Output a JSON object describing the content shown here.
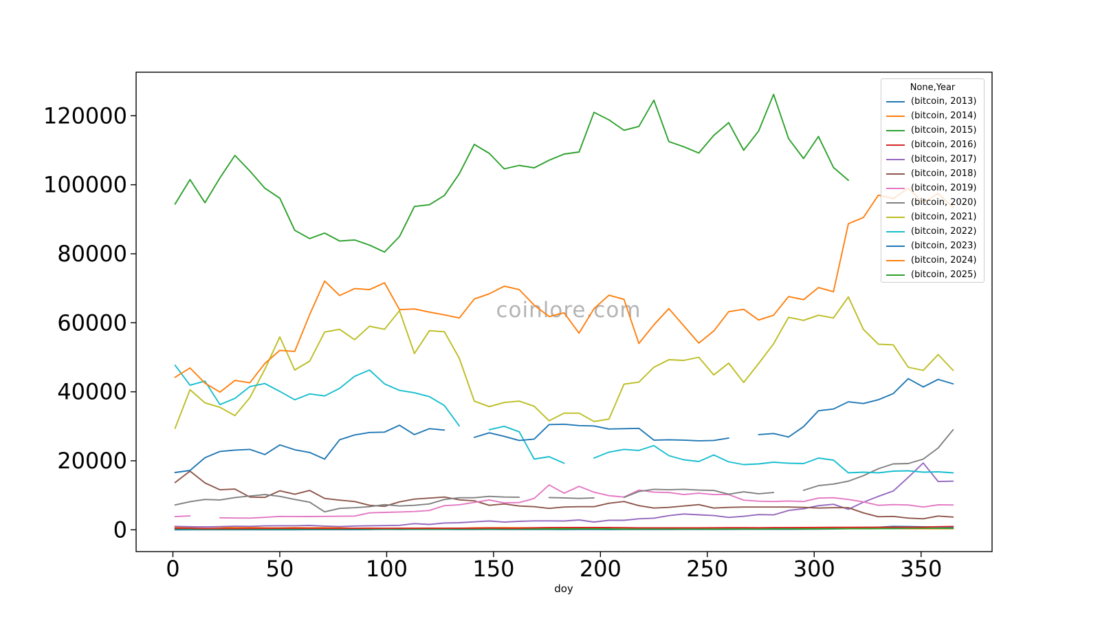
{
  "figure": {
    "background": "#ffffff"
  },
  "chart_data": {
    "type": "line",
    "title": "",
    "xlabel": "doy",
    "ylabel": "",
    "watermark": "coinlore.com",
    "legend_title": "None,Year",
    "legend_position": "upper right",
    "grid": false,
    "xlim": [
      -17.2,
      383.2
    ],
    "ylim": [
      -6315,
      132615
    ],
    "x_ticks": [
      0,
      50,
      100,
      150,
      200,
      250,
      300,
      350
    ],
    "y_ticks": [
      0,
      20000,
      40000,
      60000,
      80000,
      100000,
      120000
    ],
    "x": [
      1,
      8,
      15,
      22,
      29,
      36,
      43,
      50,
      57,
      64,
      71,
      78,
      85,
      92,
      99,
      106,
      113,
      120,
      127,
      134,
      141,
      148,
      155,
      162,
      169,
      176,
      183,
      190,
      197,
      204,
      211,
      218,
      225,
      232,
      239,
      246,
      253,
      260,
      267,
      274,
      281,
      288,
      295,
      302,
      309,
      316,
      323,
      330,
      337,
      344,
      351,
      358,
      365
    ],
    "series": [
      {
        "name": "(bitcoin, 2013)",
        "color": "#1f77b4",
        "values": [
          13,
          14,
          14,
          16,
          19,
          21,
          25,
          27,
          31,
          34,
          36,
          44,
          57,
          78,
          135,
          100,
          115,
          120,
          117,
          112,
          108,
          122,
          111,
          104,
          100,
          97,
          90,
          95,
          97,
          90,
          94,
          103,
          108,
          113,
          123,
          126,
          133,
          133,
          139,
          141,
          152,
          157,
          178,
          204,
          253,
          337,
          512,
          745,
          1010,
          935,
          870,
          805,
          754
        ]
      },
      {
        "name": "(bitcoin, 2014)",
        "color": "#ff7f0e",
        "values": [
          770,
          810,
          835,
          800,
          625,
          660,
          585,
          545,
          620,
          585,
          630,
          585,
          455,
          500,
          445,
          450,
          440,
          445,
          435,
          440,
          580,
          595,
          620,
          600,
          595,
          630,
          640,
          620,
          620,
          585,
          585,
          505,
          500,
          475,
          480,
          455,
          410,
          400,
          390,
          375,
          350,
          355,
          380,
          365,
          375,
          355,
          350,
          350,
          375,
          330,
          320,
          315,
          318
        ]
      },
      {
        "name": "(bitcoin, 2015)",
        "color": "#2ca02c",
        "values": [
          315,
          285,
          210,
          220,
          225,
          240,
          235,
          245,
          240,
          245,
          245,
          255,
          280,
          255,
          245,
          235,
          235,
          230,
          235,
          240,
          235,
          240,
          240,
          260,
          260,
          255,
          255,
          280,
          285,
          265,
          230,
          225,
          235,
          230,
          230,
          235,
          230,
          235,
          240,
          250,
          265,
          275,
          270,
          285,
          315,
          325,
          330,
          350,
          360,
          415,
          440,
          430,
          430
        ]
      },
      {
        "name": "(bitcoin, 2016)",
        "color": "#d62728",
        "values": [
          435,
          450,
          365,
          380,
          380,
          395,
          420,
          440,
          435,
          420,
          415,
          410,
          420,
          415,
          415,
          445,
          450,
          455,
          450,
          455,
          450,
          525,
          450,
          460,
          580,
          650,
          675,
          655,
          660,
          655,
          625,
          585,
          575,
          570,
          575,
          580,
          610,
          615,
          630,
          610,
          635,
          640,
          685,
          700,
          715,
          730,
          745,
          740,
          770,
          775,
          790,
          900,
          963
        ]
      },
      {
        "name": "(bitcoin, 2017)",
        "color": "#9467bd",
        "values": [
          998,
          900,
          820,
          920,
          1050,
          1010,
          1130,
          1180,
          1180,
          1250,
          1080,
          945,
          1100,
          1180,
          1210,
          1290,
          1790,
          1560,
          1970,
          2050,
          2320,
          2550,
          2230,
          2450,
          2590,
          2600,
          2550,
          2850,
          2250,
          2750,
          2750,
          3200,
          3380,
          4100,
          4580,
          4350,
          4120,
          3600,
          3920,
          4400,
          4330,
          5600,
          6100,
          7000,
          7400,
          5950,
          8000,
          9700,
          11250,
          15200,
          19350,
          14000,
          14100
        ]
      },
      {
        "name": "(bitcoin, 2018)",
        "color": "#8c564b",
        "values": [
          13700,
          17000,
          13600,
          11600,
          11800,
          9500,
          9400,
          11300,
          10300,
          11400,
          9100,
          8600,
          8200,
          7100,
          6800,
          8100,
          8900,
          9200,
          9500,
          8700,
          8400,
          7100,
          7500,
          6900,
          6700,
          6200,
          6600,
          6700,
          6700,
          7700,
          8200,
          7000,
          6300,
          6500,
          6900,
          7300,
          6300,
          6500,
          6600,
          6600,
          6600,
          6600,
          6500,
          6300,
          6400,
          6400,
          4900,
          3800,
          3900,
          3400,
          3200,
          4000,
          3700
        ]
      },
      {
        "name": "(bitcoin, 2019)",
        "color": "#e377c2",
        "values": [
          3840,
          4030,
          null,
          3500,
          3420,
          3400,
          3620,
          3900,
          3830,
          3860,
          3900,
          3940,
          4000,
          4900,
          5050,
          5170,
          5300,
          5600,
          7000,
          7250,
          7950,
          8650,
          7800,
          7900,
          9100,
          13000,
          10600,
          12600,
          10900,
          9900,
          9500,
          11500,
          10900,
          10800,
          10200,
          10600,
          10200,
          10200,
          8600,
          8300,
          8200,
          8350,
          8200,
          9200,
          9300,
          8800,
          8100,
          7100,
          7300,
          7200,
          6600,
          7250,
          7200
        ]
      },
      {
        "name": "(bitcoin, 2020)",
        "color": "#7f7f7f",
        "values": [
          7200,
          8150,
          8800,
          8650,
          9350,
          9800,
          10200,
          9700,
          8800,
          8000,
          5200,
          6200,
          6400,
          6700,
          7300,
          6900,
          7100,
          7500,
          8800,
          9300,
          9300,
          9700,
          9500,
          9450,
          null,
          9350,
          9250,
          9100,
          9250,
          null,
          9400,
          11100,
          11750,
          11600,
          11750,
          11500,
          11400,
          10300,
          11000,
          10450,
          10800,
          null,
          11450,
          12800,
          13250,
          14100,
          15700,
          17700,
          19100,
          19200,
          20500,
          23700,
          29000
        ]
      },
      {
        "name": "(bitcoin, 2021)",
        "color": "#bcbd22",
        "values": [
          29400,
          40600,
          36800,
          35500,
          33100,
          38300,
          46500,
          55900,
          46300,
          48900,
          57300,
          58100,
          55100,
          59000,
          58100,
          63500,
          51100,
          57700,
          57400,
          49700,
          37300,
          35700,
          36900,
          37300,
          35800,
          31600,
          33800,
          33800,
          31400,
          32100,
          42200,
          42800,
          47100,
          49300,
          49100,
          50000,
          44900,
          48300,
          42700,
          48200,
          53900,
          61600,
          60700,
          62200,
          61400,
          67500,
          58100,
          53800,
          53600,
          47100,
          46200,
          50800,
          46200
        ]
      },
      {
        "name": "(bitcoin, 2022)",
        "color": "#17becf",
        "values": [
          47700,
          41900,
          43100,
          36300,
          38100,
          41500,
          42400,
          40100,
          37700,
          39400,
          38800,
          41000,
          44500,
          46300,
          42300,
          40400,
          39700,
          38600,
          36000,
          30100,
          null,
          29000,
          30000,
          28400,
          20500,
          21200,
          19300,
          null,
          20800,
          22500,
          23300,
          23000,
          24400,
          21500,
          20300,
          19800,
          21700,
          19700,
          18900,
          19100,
          19600,
          19300,
          19200,
          20800,
          20200,
          16500,
          16700,
          16500,
          17000,
          17100,
          16700,
          16800,
          16500
        ]
      },
      {
        "name": "(bitcoin, 2023)",
        "color": "#1f77b4",
        "values": [
          16600,
          17200,
          20900,
          22700,
          23100,
          23300,
          21800,
          24600,
          23200,
          22400,
          20500,
          26100,
          27500,
          28200,
          28300,
          30300,
          27600,
          29300,
          28900,
          null,
          26800,
          28100,
          27100,
          25900,
          26300,
          30500,
          30600,
          30200,
          30100,
          29200,
          29300,
          29400,
          26000,
          26100,
          26000,
          25800,
          25900,
          26600,
          null,
          27600,
          27900,
          26900,
          29900,
          34500,
          35000,
          37100,
          36600,
          37700,
          39500,
          43800,
          41400,
          43600,
          42300
        ]
      },
      {
        "name": "(bitcoin, 2024)",
        "color": "#ff7f0e",
        "values": [
          44200,
          46900,
          42500,
          39900,
          43300,
          42600,
          48200,
          52000,
          51700,
          62400,
          72100,
          67900,
          69900,
          69600,
          71600,
          63800,
          64000,
          63100,
          62300,
          61400,
          66900,
          68400,
          70600,
          69600,
          65100,
          61800,
          62900,
          57000,
          64100,
          68000,
          66800,
          54000,
          59400,
          64100,
          59100,
          54100,
          57600,
          63200,
          63900,
          60800,
          62200,
          67600,
          66700,
          70200,
          69000,
          88700,
          90500,
          97000,
          96000,
          99000,
          94800,
          97500,
          93400
        ]
      },
      {
        "name": "(bitcoin, 2025)",
        "color": "#2ca02c",
        "values": [
          94400,
          101500,
          94800,
          102000,
          108500,
          104000,
          99000,
          96100,
          86800,
          84400,
          86000,
          83700,
          84000,
          82500,
          80500,
          85000,
          93700,
          94200,
          96900,
          103200,
          111700,
          109100,
          104600,
          105600,
          104900,
          107100,
          108900,
          109500,
          121000,
          118800,
          115800,
          116900,
          124500,
          112500,
          111000,
          109200,
          114300,
          118000,
          110000,
          115600,
          126200,
          113400,
          107600,
          114000,
          105000,
          101300,
          null,
          null,
          null,
          null,
          null,
          null,
          null
        ]
      }
    ]
  }
}
